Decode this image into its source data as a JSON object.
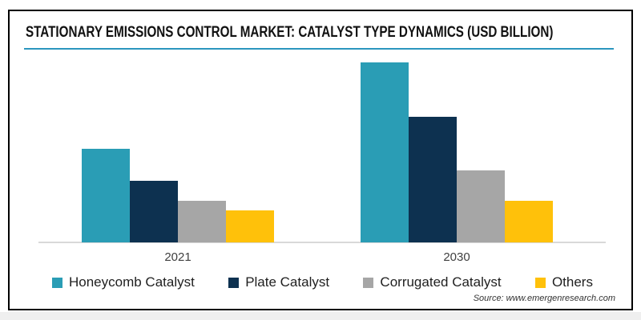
{
  "title": "STATIONARY EMISSIONS CONTROL MARKET: CATALYST TYPE DYNAMICS (USD BILLION)",
  "source": "Source: www.emergenresearch.com",
  "colors": {
    "title_underline": "#2B96BE",
    "axis_line": "#D9D9D9",
    "frame_border": "#000000",
    "background": "#FFFFFF"
  },
  "chart_data": {
    "type": "bar",
    "title": "STATIONARY EMISSIONS CONTROL MARKET: CATALYST TYPE DYNAMICS (USD BILLION)",
    "units": "USD Billion",
    "categories": [
      "2021",
      "2030"
    ],
    "series": [
      {
        "name": "Honeycomb Catalyst",
        "color": "#2A9DB5",
        "values": [
          4.7,
          9.0
        ]
      },
      {
        "name": "Plate Catalyst",
        "color": "#0D3150",
        "values": [
          3.1,
          6.3
        ]
      },
      {
        "name": "Corrugated Catalyst",
        "color": "#A6A6A6",
        "values": [
          2.1,
          3.6
        ]
      },
      {
        "name": "Others",
        "color": "#FFC10A",
        "values": [
          1.6,
          2.1
        ]
      }
    ],
    "xlabel": "",
    "ylabel": "",
    "ylim": [
      0,
      9.6
    ],
    "value_axis_visible": false,
    "grid": false,
    "legend_position": "bottom"
  }
}
